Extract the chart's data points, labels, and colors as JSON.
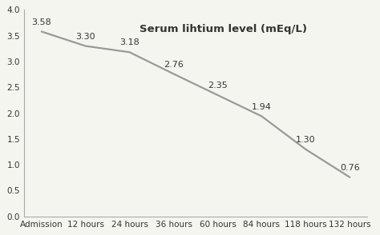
{
  "x_labels": [
    "Admission",
    "12 hours",
    "24 hours",
    "36 hours",
    "60 hours",
    "84 hours",
    "118 hours",
    "132 hours"
  ],
  "y_values": [
    3.58,
    3.3,
    3.18,
    2.76,
    2.35,
    1.94,
    1.3,
    0.76
  ],
  "title": "Serum lihtium level (mEq/L)",
  "ylim": [
    0.0,
    4.0
  ],
  "yticks": [
    0.0,
    0.5,
    1.0,
    1.5,
    2.0,
    2.5,
    3.0,
    3.5,
    4.0
  ],
  "line_color": "#999999",
  "line_width": 1.6,
  "background_color": "#f5f5f0",
  "annotation_fontsize": 8,
  "title_fontsize": 9.5,
  "tick_fontsize": 7.5,
  "spine_color": "#aaaaaa",
  "text_color": "#333333"
}
